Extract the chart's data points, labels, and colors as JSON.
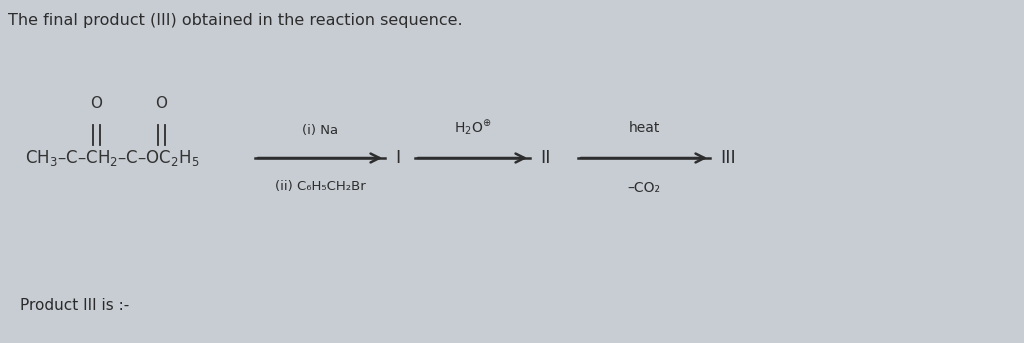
{
  "background_color": "#c8cdd4",
  "title": "The final product (III) obtained in the reaction sequence.",
  "title_fontsize": 11.5,
  "title_color": "#2a2a2a",
  "footer_text": "Product III is :-",
  "footer_fontsize": 11,
  "footer_color": "#2a2a2a",
  "arrow1_label_top": "(i) Na",
  "arrow1_label_bottom": "(ii) C₆H₅CH₂Br",
  "arrow2_label_top": "H₂O⊕",
  "arrow3_label_top": "heat",
  "arrow3_label_bottom": "–CO₂",
  "label_I": "I",
  "label_II": "II",
  "label_III": "III",
  "text_color": "#2d2d2d",
  "arrow_color": "#2d2d2d",
  "bond_color": "#2d2d2d",
  "struct_color": "#333333"
}
